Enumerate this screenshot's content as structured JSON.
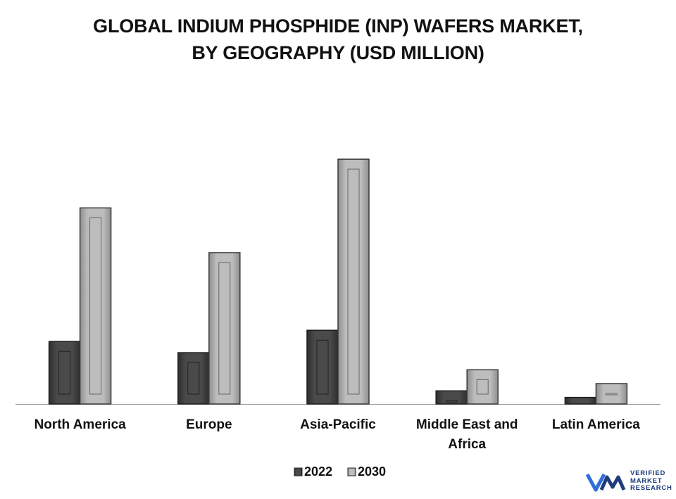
{
  "chart_data": {
    "type": "bar",
    "title_lines": [
      "GLOBAL INDIUM PHOSPHIDE (INP) WAFERS MARKET,",
      "BY GEOGRAPHY (USD MILLION)"
    ],
    "categories": [
      "North America",
      "Europe",
      "Asia-Pacific",
      "Middle East and Africa",
      "Latin America"
    ],
    "series": [
      {
        "name": "2022",
        "values": [
          95,
          78,
          112,
          20,
          10
        ],
        "color": "#4a4a4a"
      },
      {
        "name": "2030",
        "values": [
          298,
          230,
          372,
          52,
          31
        ],
        "color": "#bdbdbd"
      }
    ],
    "ylim": [
      0,
      400
    ],
    "grid": false,
    "legend_position": "bottom-center",
    "xlabel": "",
    "ylabel": ""
  },
  "brand": {
    "lines": [
      "VERIFIED",
      "MARKET",
      "RESEARCH"
    ],
    "color": "#1f3d7a"
  }
}
